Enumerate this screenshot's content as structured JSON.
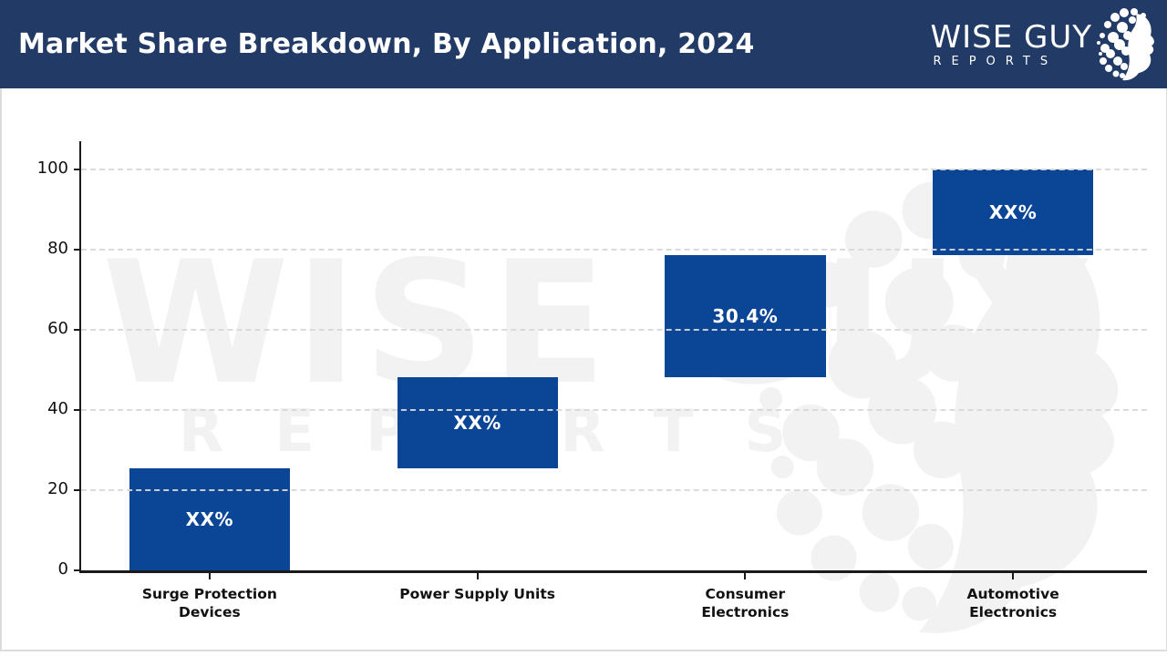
{
  "header": {
    "title": "Market Share Breakdown, By Application, 2024",
    "bg_color": "#213a66",
    "logo": {
      "line1": "WISE GUY",
      "line2": "REPORTS"
    }
  },
  "watermark": {
    "line1": "WISE GUY",
    "line2": "REPORTS"
  },
  "chart_data": {
    "type": "bar",
    "subtype": "floating-waterfall",
    "title": "Market Share Breakdown, By Application, 2024",
    "categories": [
      "Surge Protection Devices",
      "Power Supply Units",
      "Consumer Electronics",
      "Automotive Electronics"
    ],
    "category_lines": [
      [
        "Surge Protection",
        "Devices"
      ],
      [
        "Power Supply Units"
      ],
      [
        "Consumer",
        "Electronics"
      ],
      [
        "Automotive",
        "Electronics"
      ]
    ],
    "segments": [
      {
        "start": 0,
        "end": 25.5
      },
      {
        "start": 25.4,
        "end": 48.1
      },
      {
        "start": 48.2,
        "end": 78.6
      },
      {
        "start": 78.7,
        "end": 100
      }
    ],
    "bar_labels": [
      "XX%",
      "XX%",
      "30.4%",
      "XX%"
    ],
    "xlabel": "",
    "ylabel": "",
    "ylim": [
      0,
      100
    ],
    "yticks": [
      0,
      20,
      40,
      60,
      80,
      100
    ],
    "grid": "dashed horizontal",
    "legend": "none",
    "bar_color": "#0b4596",
    "bar_label_color": "#ffffff",
    "grid_color": "#d9d9d9",
    "axis_color": "#1a1a1a"
  }
}
